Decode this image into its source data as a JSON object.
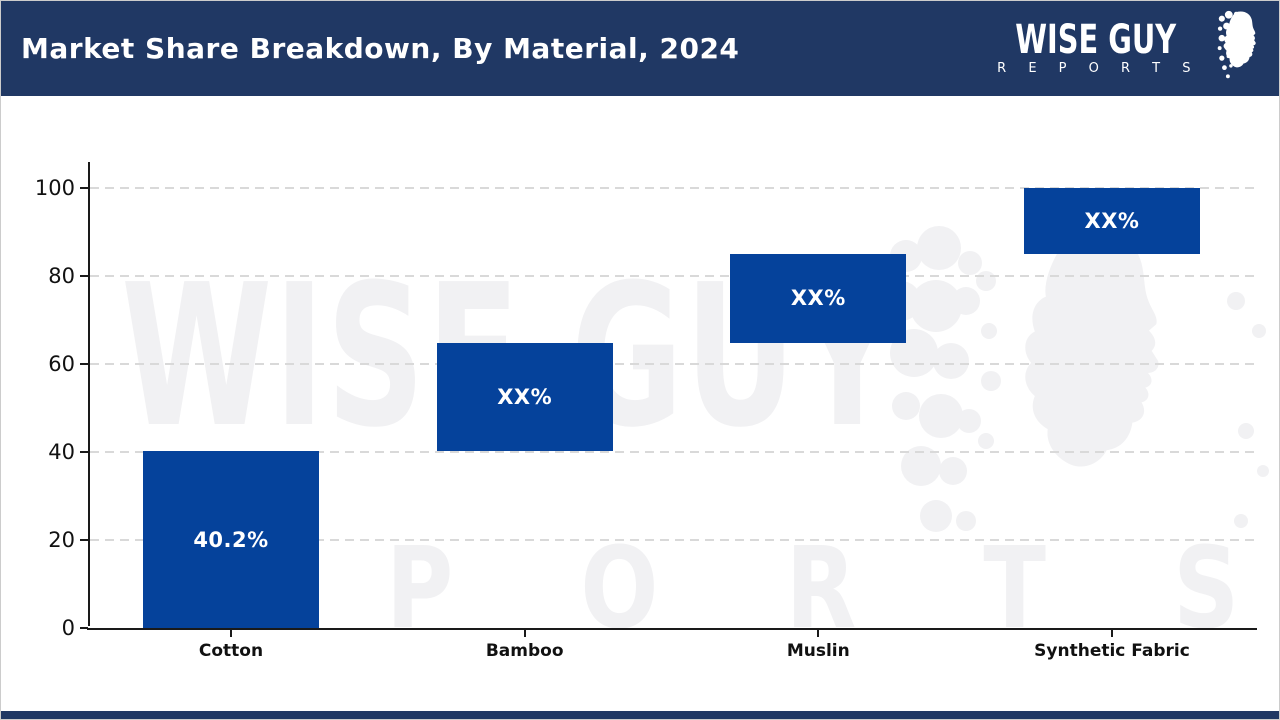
{
  "header": {
    "title": "Market Share Breakdown, By Material, 2024",
    "logo": {
      "name": "WISE GUY",
      "tagline": "R E P O R T S"
    }
  },
  "watermark": {
    "line1": "WISE GUY",
    "line2": "P O R T S"
  },
  "colors": {
    "header_bg": "#203864",
    "footer_bg": "#203864",
    "bar": "#05429b",
    "gridline": "#d9d9d9",
    "axis": "#1a1a1a",
    "watermark": "#f1f1f3"
  },
  "chart_data": {
    "type": "bar",
    "variant": "waterfall",
    "title": "Market Share Breakdown, By Material, 2024",
    "categories": [
      "Cotton",
      "Bamboo",
      "Muslin",
      "Synthetic Fabric"
    ],
    "segments": [
      {
        "category": "Cotton",
        "start": 0,
        "end": 40.2,
        "value_label": "40.2%"
      },
      {
        "category": "Bamboo",
        "start": 40.2,
        "end": 64.8,
        "value_label": "XX%"
      },
      {
        "category": "Muslin",
        "start": 64.8,
        "end": 85,
        "value_label": "XX%"
      },
      {
        "category": "Synthetic Fabric",
        "start": 85,
        "end": 100,
        "value_label": "XX%"
      }
    ],
    "values_implied": [
      40.2,
      24.6,
      20.2,
      15.0
    ],
    "ylim": [
      0,
      100
    ],
    "yticks": [
      0,
      20,
      40,
      60,
      80,
      100
    ],
    "grid": "horizontal-dashed",
    "legend": "none",
    "xlabel": "",
    "ylabel": "",
    "bar_color": "#05429b"
  }
}
